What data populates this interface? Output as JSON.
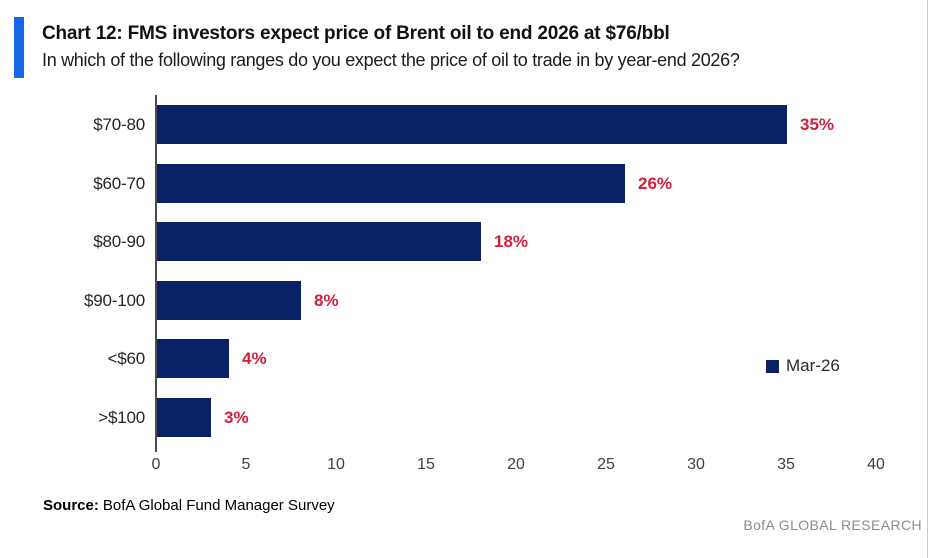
{
  "header": {
    "title": "Chart 12: FMS investors expect price of Brent oil to end 2026 at $76/bbl",
    "subtitle": "In which of the following ranges do you expect the price of oil to trade in by year-end 2026?"
  },
  "chart_data": {
    "type": "bar",
    "orientation": "horizontal",
    "title": "Chart 12: FMS investors expect price of Brent oil to end 2026 at $76/bbl",
    "subtitle": "In which of the following ranges do you expect the price of oil to trade in by year-end 2026?",
    "categories": [
      "$70-80",
      "$60-70",
      "$80-90",
      "$90-100",
      "<$60",
      ">$100"
    ],
    "values": [
      35,
      26,
      18,
      8,
      4,
      3
    ],
    "value_labels": [
      "35%",
      "26%",
      "18%",
      "8%",
      "4%",
      "3%"
    ],
    "series_name": "Mar-26",
    "x_ticks": [
      0,
      5,
      10,
      15,
      20,
      25,
      30,
      35,
      40
    ],
    "xlim": [
      0,
      40
    ],
    "grid": false,
    "legend_position": "right",
    "bar_color": "#0a2166",
    "value_label_color": "#d21f3b"
  },
  "legend": {
    "label": "Mar-26",
    "swatch_color": "#0a2166"
  },
  "footer": {
    "source_label": "Source:",
    "source_text": "BofA Global Fund Manager Survey",
    "brand": "BofA GLOBAL RESEARCH"
  },
  "colors": {
    "accent_bar": "#1567e2",
    "bar_navy": "#0a2166",
    "value_red": "#d21f3b",
    "axis_line": "#4d4d4d",
    "brand_gray": "#8c8c8c"
  }
}
